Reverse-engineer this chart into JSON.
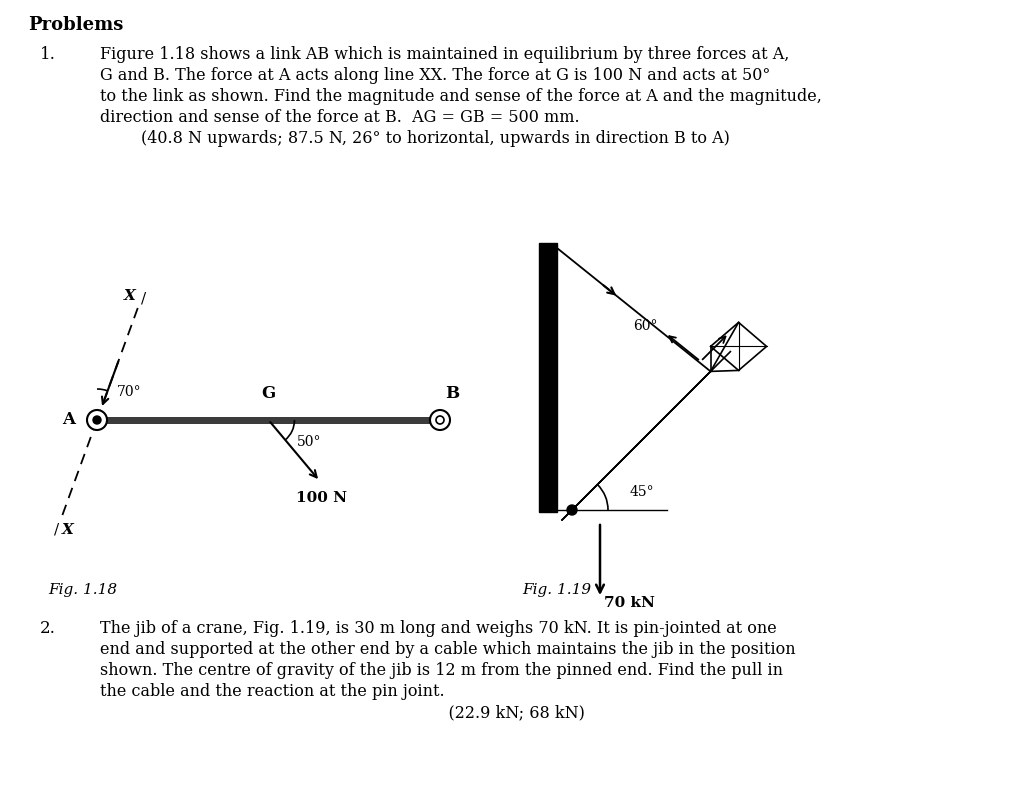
{
  "title": "Problems",
  "problem1_lines": [
    "Figure 1.18 shows a link AB which is maintained in equilibrium by three forces at A,",
    "G and B. The force at A acts along line XX. The force at G is 100 N and acts at 50°",
    "to the link as shown. Find the magnitude and sense of the force at A and the magnitude,",
    "direction and sense of the force at B.  AG = GB = 500 mm.",
    "        (40.8 N upwards; 87.5 N, 26° to horizontal, upwards in direction B to A)"
  ],
  "problem2_lines": [
    "The jib of a crane, Fig. 1.19, is 30 m long and weighs 70 kN. It is pin-jointed at one",
    "end and supported at the other end by a cable which maintains the jib in the position",
    "shown. The centre of gravity of the jib is 12 m from the pinned end. Find the pull in",
    "the cable and the reaction at the pin joint.",
    "                                                                    (22.9 kN; 68 kN)"
  ],
  "fig118_label": "Fig. 1.18",
  "fig119_label": "Fig. 1.19",
  "bg_color": "#ffffff",
  "text_color": "#000000"
}
